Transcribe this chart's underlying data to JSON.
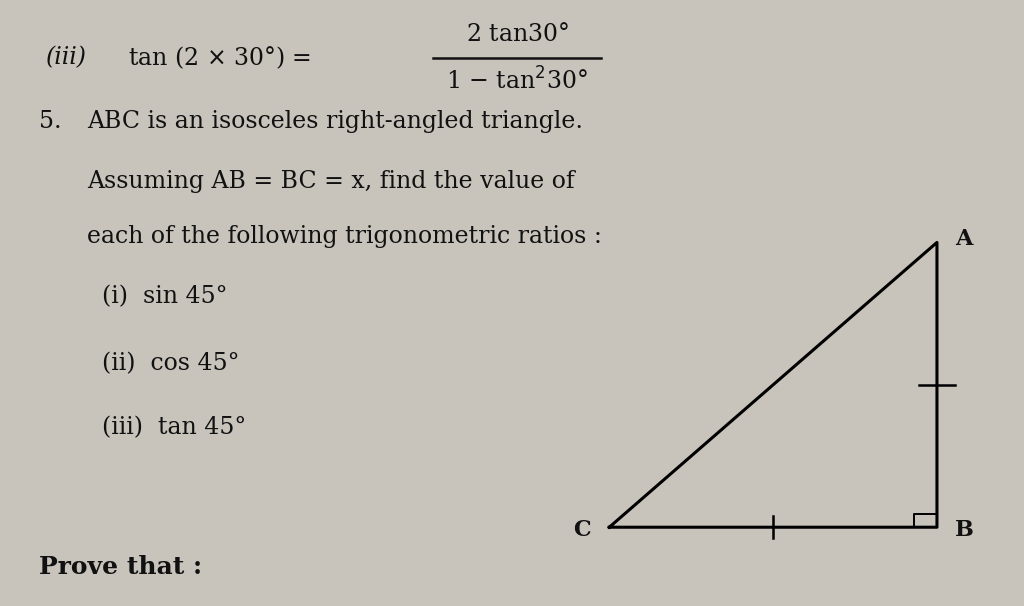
{
  "bg_color": "#c8c4bc",
  "text_color": "#111111",
  "fig_width": 10.24,
  "fig_height": 6.06,
  "triangle": {
    "C": [
      0.595,
      0.13
    ],
    "B": [
      0.915,
      0.13
    ],
    "A": [
      0.915,
      0.6
    ]
  }
}
